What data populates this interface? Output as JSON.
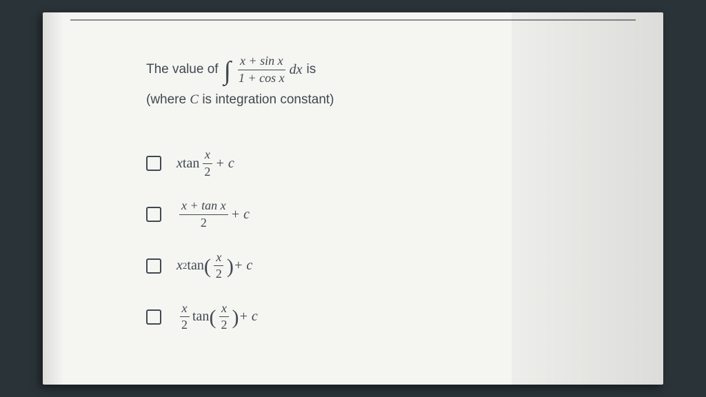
{
  "colors": {
    "page_bg": "#f5f5f2",
    "body_bg": "#2a3338",
    "text": "#404850",
    "rule": "#5a6066",
    "checkbox_border": "#404850"
  },
  "question": {
    "prefix": "The value of",
    "integral_numerator": "x + sin x",
    "integral_denominator": "1 + cos x",
    "differential": "dx",
    "suffix": "is",
    "note_open": "(where ",
    "note_var": "C",
    "note_close": " is integration constant)"
  },
  "options": {
    "a": {
      "x": "x",
      "tan": " tan",
      "frac_num": "x",
      "frac_den": "2",
      "tail": " + c"
    },
    "b": {
      "frac_num": "x + tan x",
      "frac_den": "2",
      "tail": " + c"
    },
    "c": {
      "x2": "x",
      "sup2": "2",
      "tan": " tan",
      "frac_num": "x",
      "frac_den": "2",
      "tail": " + c"
    },
    "d": {
      "frac1_num": "x",
      "frac1_den": "2",
      "tan": "tan",
      "frac2_num": "x",
      "frac2_den": "2",
      "tail": " + c"
    }
  }
}
